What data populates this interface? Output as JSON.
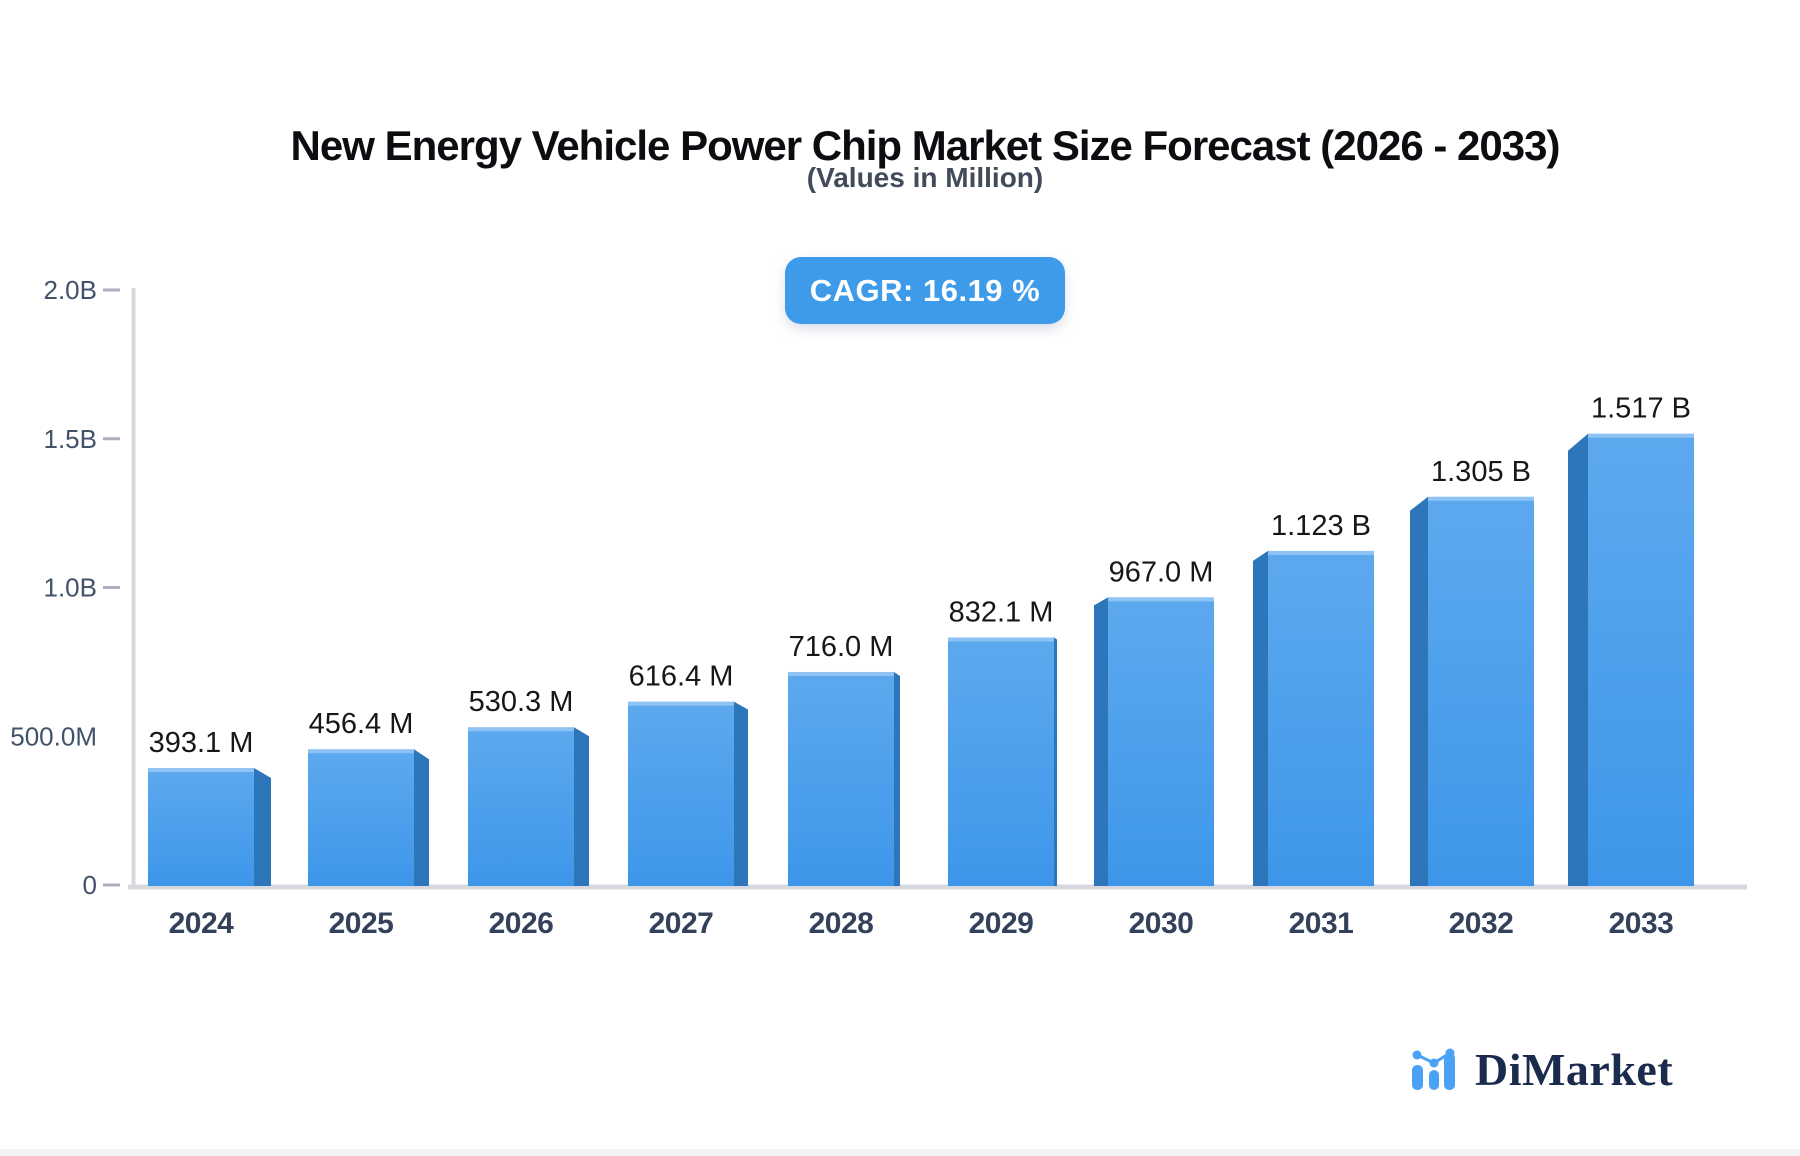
{
  "chart_data": {
    "type": "bar",
    "title": "New Energy Vehicle Power Chip Market Size Forecast (2026 - 2033)",
    "subtitle": "(Values in Million)",
    "cagr_label": "CAGR: 16.19 %",
    "cagr_percent": 16.19,
    "categories": [
      "2024",
      "2025",
      "2026",
      "2027",
      "2028",
      "2029",
      "2030",
      "2031",
      "2032",
      "2033"
    ],
    "values_millions": [
      393.1,
      456.4,
      530.3,
      616.4,
      716.0,
      832.1,
      967.0,
      1123,
      1305,
      1517
    ],
    "value_labels": [
      "393.1 M",
      "456.4 M",
      "530.3 M",
      "616.4 M",
      "716.0 M",
      "832.1 M",
      "967.0 M",
      "1.123 B",
      "1.305 B",
      "1.517 B"
    ],
    "xlabel": "",
    "ylabel": "",
    "ylim_millions": [
      0,
      2000
    ],
    "y_ticks": [
      {
        "label": "2.0B",
        "value_millions": 2000,
        "dash": true
      },
      {
        "label": "1.5B",
        "value_millions": 1500,
        "dash": true
      },
      {
        "label": "1.0B",
        "value_millions": 1000,
        "dash": true
      },
      {
        "label": "500.0M",
        "value_millions": 500,
        "dash": false
      },
      {
        "label": "0",
        "value_millions": 0,
        "dash": true
      }
    ],
    "grid": false,
    "legend": "none",
    "bar_style": "3d-box-center-perspective"
  },
  "colors": {
    "background": "#ffffff",
    "title": "#0c0d10",
    "subtitle": "#414b59",
    "badge_bg": "#3d9be9",
    "badge_text": "#ffffff",
    "bar_face_top": "#5da9ee",
    "bar_face_bottom": "#3e96ea",
    "bar_side": "#2d76ba",
    "bar_top_highlight": "rgba(255,255,255,0.30)",
    "axis_line": "#d6d8de",
    "tick": "#a9afbb",
    "y_label": "#42526b",
    "x_label": "#34415a",
    "value_label": "#15171a",
    "logo_icon": "#49a2f5",
    "logo_text": "#1b2b4d"
  },
  "footer": {
    "brand": "DiMarket"
  }
}
